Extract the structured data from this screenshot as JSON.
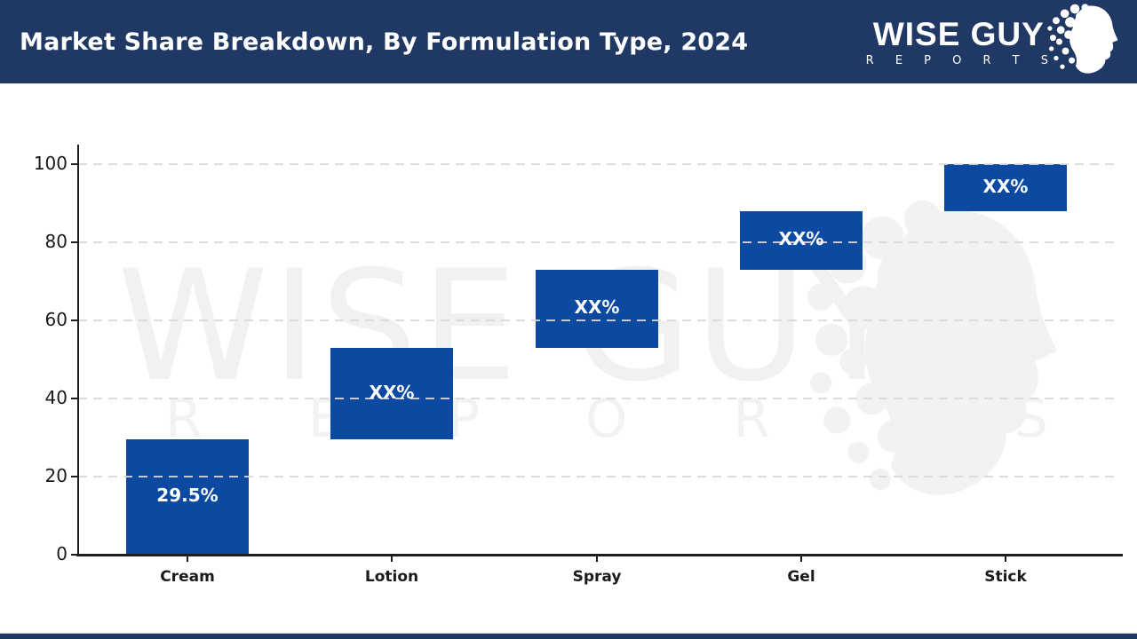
{
  "header": {
    "title": "Market Share Breakdown, By Formulation Type, 2024",
    "logo": {
      "line1": "WISE GUY",
      "line2": "R E P O R T S"
    }
  },
  "watermark": {
    "line1": "WISE GUY",
    "line2": "R E P O R T S"
  },
  "chart_data": {
    "type": "bar",
    "subtype": "waterfall",
    "title": "Market Share Breakdown, By Formulation Type, 2024",
    "categories": [
      "Cream",
      "Lotion",
      "Spray",
      "Gel",
      "Stick"
    ],
    "segments": [
      {
        "category": "Cream",
        "start": 0,
        "end": 29.5,
        "label": "29.5%"
      },
      {
        "category": "Lotion",
        "start": 29.5,
        "end": 53,
        "label": "XX%"
      },
      {
        "category": "Spray",
        "start": 53,
        "end": 73,
        "label": "XX%"
      },
      {
        "category": "Gel",
        "start": 73,
        "end": 88,
        "label": "XX%"
      },
      {
        "category": "Stick",
        "start": 88,
        "end": 100,
        "label": "XX%"
      }
    ],
    "yticks": [
      0,
      20,
      40,
      60,
      80,
      100
    ],
    "ylim": [
      0,
      105
    ],
    "xlabel": "",
    "ylabel": "",
    "grid": "horizontal-dashed",
    "legend": "none",
    "bar_color": "#0c4aa2",
    "value_label_color": "#ffffff"
  },
  "colors": {
    "header_bg": "#1f3864",
    "bar": "#0c4aa2",
    "grid": "#d8d8d8",
    "axis": "#1c1c1c",
    "watermark": "#f1f1f1",
    "footer_bar": "#1f3864"
  }
}
